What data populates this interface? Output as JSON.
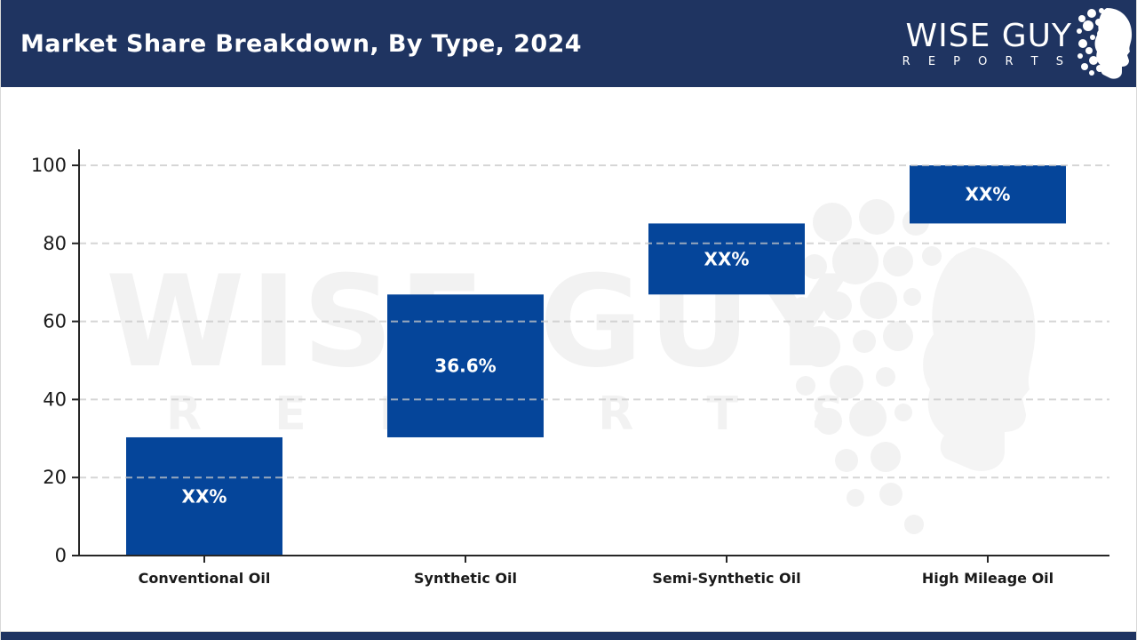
{
  "header": {
    "title": "Market Share Breakdown, By Type, 2024",
    "logo": {
      "line1": "WISE GUY",
      "line2": "R E P O R T S"
    }
  },
  "watermark": {
    "line1": "WISE GUY",
    "line2": "R E P O R T S"
  },
  "chart_data": {
    "type": "bar",
    "subtype": "waterfall",
    "title": "Market Share Breakdown, By Type, 2024",
    "xlabel": "",
    "ylabel": "",
    "ylim": [
      0,
      100
    ],
    "y_ticks": [
      0,
      20,
      40,
      60,
      80,
      100
    ],
    "grid": "horizontal dashed",
    "legend": "none",
    "categories": [
      "Conventional Oil",
      "Synthetic Oil",
      "Semi-Synthetic Oil",
      "High Mileage Oil"
    ],
    "bars": [
      {
        "category": "Conventional Oil",
        "start": 0,
        "end": 30.3,
        "value": 30.3,
        "label": "XX%"
      },
      {
        "category": "Synthetic Oil",
        "start": 30.3,
        "end": 66.9,
        "value": 36.6,
        "label": "36.6%"
      },
      {
        "category": "Semi-Synthetic Oil",
        "start": 66.9,
        "end": 85.1,
        "value": 18.2,
        "label": "XX%"
      },
      {
        "category": "High Mileage Oil",
        "start": 85.1,
        "end": 100,
        "value": 14.9,
        "label": "XX%"
      }
    ]
  },
  "colors": {
    "header_bg": "#1f3461",
    "footer_bg": "#1f3461",
    "bar_fill": "#05459a",
    "bar_label": "#ffffff",
    "axis": "#262626",
    "tick_label": "#1a1a1a",
    "gridline": "#c9c9c9",
    "watermark": "#f2f2f2"
  }
}
